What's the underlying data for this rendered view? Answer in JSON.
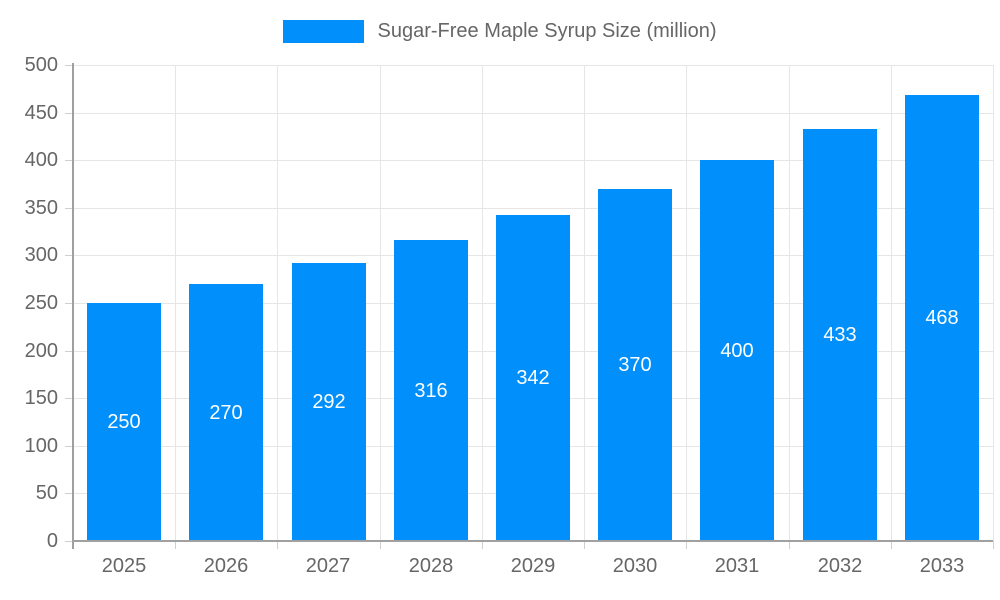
{
  "chart_data": {
    "type": "bar",
    "title": "Sugar-Free Maple Syrup Size (million)",
    "categories": [
      "2025",
      "2026",
      "2027",
      "2028",
      "2029",
      "2030",
      "2031",
      "2032",
      "2033"
    ],
    "values": [
      250,
      270,
      292,
      316,
      342,
      370,
      400,
      433,
      468
    ],
    "xlabel": "",
    "ylabel": "",
    "ylim": [
      0,
      500
    ],
    "ytick_step": 50,
    "ytick_labels": [
      "0",
      "50",
      "100",
      "150",
      "200",
      "250",
      "300",
      "350",
      "400",
      "450",
      "500"
    ],
    "grid": true,
    "legend_position": "top",
    "colors": {
      "bar": "#008FFB",
      "bar_value_text": "#ffffff",
      "axis_text": "#666666",
      "gridline": "#e6e6e6",
      "tick": "#cfcfcf",
      "axis_line": "#a0a0a0"
    }
  }
}
